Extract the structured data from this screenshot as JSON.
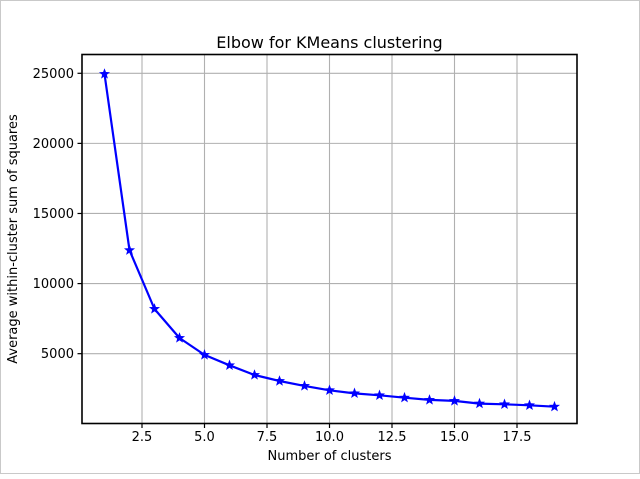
{
  "window": {
    "background": "#ffffff",
    "border_color": "#c9c9c9"
  },
  "chart_data": {
    "type": "line",
    "title": "Elbow for KMeans clustering",
    "xlabel": "Number of clusters",
    "ylabel": "Average within-cluster sum of squares",
    "x": [
      1,
      2,
      3,
      4,
      5,
      6,
      7,
      8,
      9,
      10,
      11,
      12,
      13,
      14,
      15,
      16,
      17,
      18,
      19
    ],
    "y": [
      24950,
      12380,
      8190,
      6120,
      4910,
      4170,
      3480,
      3050,
      2700,
      2390,
      2170,
      2030,
      1860,
      1700,
      1630,
      1440,
      1390,
      1320,
      1220
    ],
    "xlim": [
      0.1,
      19.9
    ],
    "ylim": [
      20,
      26340
    ],
    "x_ticks": [
      2.5,
      5,
      7.5,
      10,
      12.5,
      15,
      17.5
    ],
    "x_tick_labels": [
      "2.5",
      "5.0",
      "7.5",
      "10.0",
      "12.5",
      "15.0",
      "17.5"
    ],
    "y_ticks": [
      5000,
      10000,
      15000,
      20000,
      25000
    ],
    "y_tick_labels": [
      "5000",
      "10000",
      "15000",
      "20000",
      "25000"
    ],
    "grid": true,
    "legend_position": "none",
    "line_color": "#0000ff",
    "marker": "star",
    "marker_color": "#0000ff",
    "grid_color": "#b0b0b0",
    "spine_color": "#000000",
    "text_color": "#000000"
  }
}
